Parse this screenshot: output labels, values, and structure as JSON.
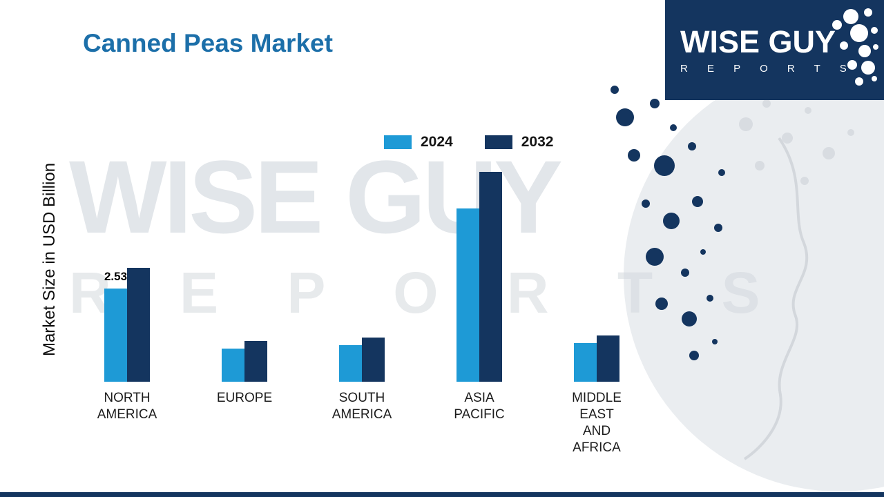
{
  "page": {
    "title": "Canned Peas Market"
  },
  "logo": {
    "name": "WISE GUY",
    "subtitle": "R E P O R T S"
  },
  "watermark": {
    "line1": "WISE GUY",
    "line2": "R E P O R T S"
  },
  "colors": {
    "title": "#1c6fa9",
    "navy": "#14355f",
    "light_blue": "#1e9ad6",
    "circle_bg": "#eaedf0",
    "watermark": "#ccd2d9"
  },
  "chart_data": {
    "type": "bar",
    "title": "Canned Peas Market",
    "ylabel": "Market Size in USD Billion",
    "ylim": [
      0,
      6
    ],
    "grid": false,
    "legend_position": "top",
    "categories": [
      "NORTH\nAMERICA",
      "EUROPE",
      "SOUTH\nAMERICA",
      "ASIA\nPACIFIC",
      "MIDDLE\nEAST\nAND\nAFRICA"
    ],
    "series": [
      {
        "name": "2024",
        "color": "#1e9ad6",
        "values": [
          2.53,
          0.9,
          1.0,
          4.7,
          1.05
        ],
        "data_labels": [
          "2.53",
          "",
          "",
          "",
          ""
        ]
      },
      {
        "name": "2032",
        "color": "#14355f",
        "values": [
          3.1,
          1.1,
          1.2,
          5.7,
          1.25
        ],
        "data_labels": [
          "",
          "",
          "",
          "",
          ""
        ]
      }
    ]
  }
}
